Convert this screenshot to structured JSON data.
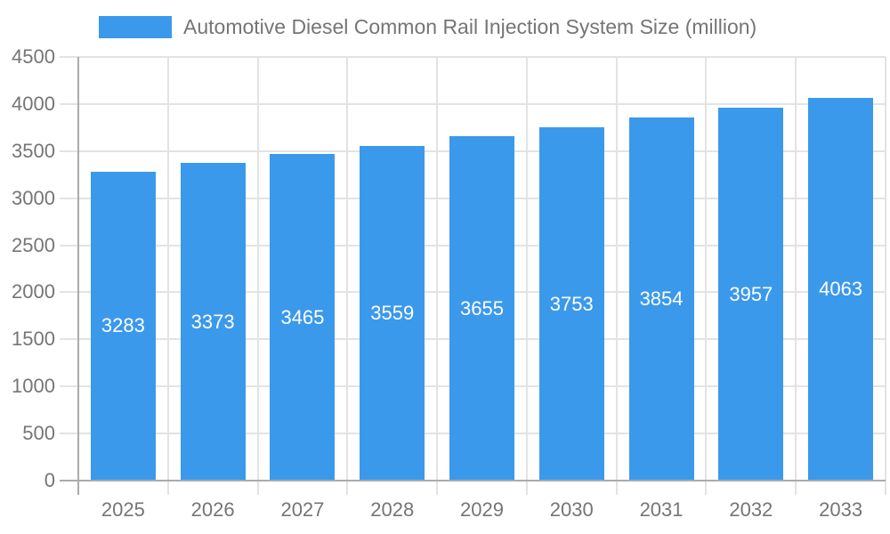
{
  "chart_data": {
    "type": "bar",
    "title": "Automotive Diesel Common Rail Injection System Size (million)",
    "categories": [
      "2025",
      "2026",
      "2027",
      "2028",
      "2029",
      "2030",
      "2031",
      "2032",
      "2033"
    ],
    "values": [
      3283,
      3373,
      3465,
      3559,
      3655,
      3753,
      3854,
      3957,
      4063
    ],
    "xlabel": "",
    "ylabel": "",
    "ylim": [
      0,
      4500
    ],
    "ytick_step": 500,
    "yticks": [
      0,
      500,
      1000,
      1500,
      2000,
      2500,
      3000,
      3500,
      4000,
      4500
    ],
    "grid": true,
    "legend_position": "top-left",
    "bar_labels_visible": true
  },
  "colors": {
    "bar": "#3b99ec",
    "grid": "#e3e3e3",
    "axis": "#ababab",
    "text": "#757575",
    "bar_label": "#ffffff"
  }
}
